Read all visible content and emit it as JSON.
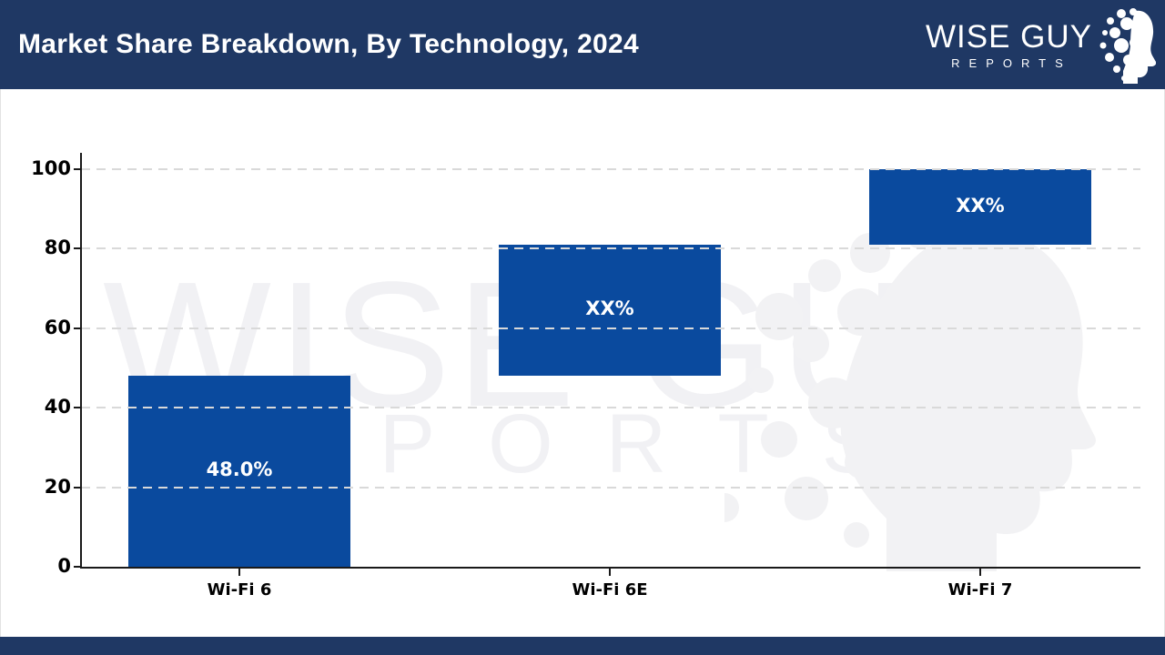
{
  "header": {
    "title": "Market Share Breakdown, By Technology, 2024",
    "logo": {
      "line1": "WISE GUY",
      "line2": "REPORTS"
    }
  },
  "watermark": {
    "line1": "WISE GUY",
    "line2": "REPORTS"
  },
  "colors": {
    "header_bg": "#1f3864",
    "bar": "#0a4a9e",
    "bar_label": "#ffffff",
    "grid": "#d9d9d9",
    "axis": "#1a1a1a",
    "watermark": "#f1f1f4"
  },
  "chart_data": {
    "type": "bar",
    "variant": "waterfall",
    "title": "Market Share Breakdown, By Technology, 2024",
    "categories": [
      "Wi-Fi 6",
      "Wi-Fi 6E",
      "Wi-Fi 7"
    ],
    "segments": [
      {
        "category": "Wi-Fi 6",
        "start": 0,
        "end": 48,
        "label": "48.0%"
      },
      {
        "category": "Wi-Fi 6E",
        "start": 48,
        "end": 81,
        "label": "XX%"
      },
      {
        "category": "Wi-Fi 7",
        "start": 81,
        "end": 100,
        "label": "XX%"
      }
    ],
    "ylim": [
      0,
      100
    ],
    "yticks": [
      0,
      20,
      40,
      60,
      80,
      100
    ],
    "grid": "dashed-horizontal",
    "legend": "none",
    "bar_color": "#0a4a9e",
    "label_color": "#ffffff"
  }
}
